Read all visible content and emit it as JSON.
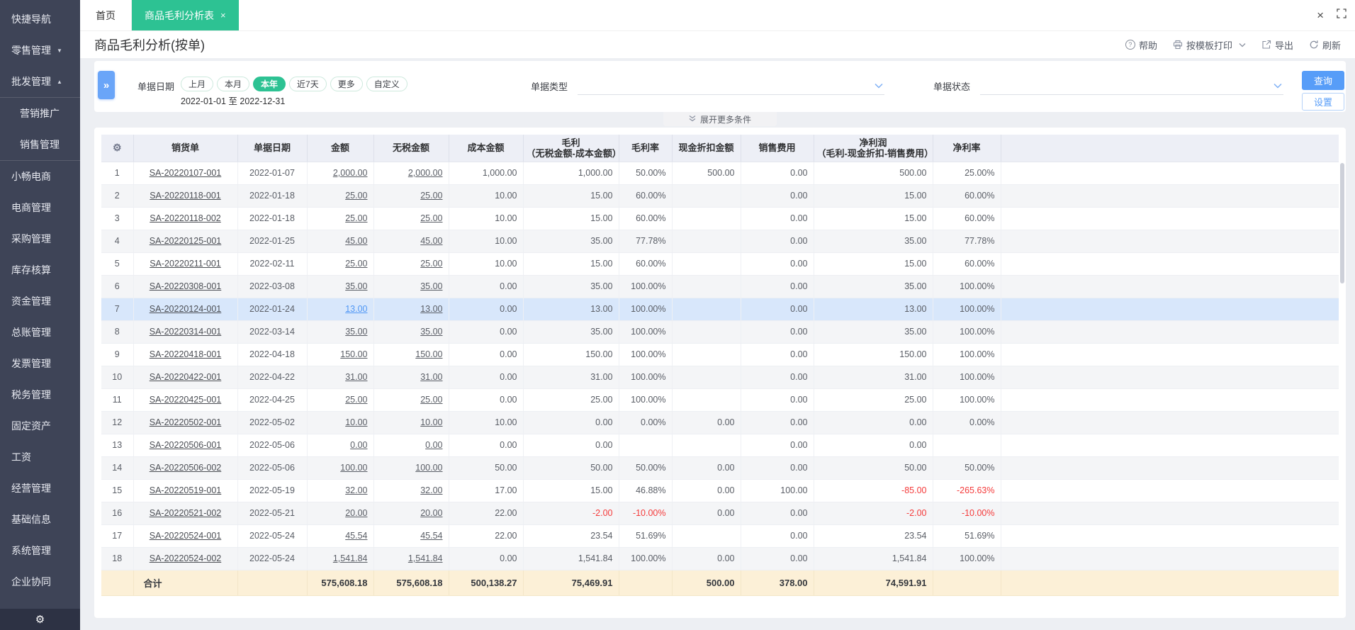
{
  "app": {
    "tabs": [
      {
        "label": "首页",
        "active": false,
        "closable": false
      },
      {
        "label": "商品毛利分析表",
        "active": true,
        "closable": true
      }
    ],
    "window_controls": {
      "close": "×",
      "fullscreen_icon": "fullscreen-icon"
    },
    "page_title": "商品毛利分析(按单)",
    "toolbar": {
      "help": "帮助",
      "print": "按模板打印",
      "export": "导出",
      "refresh": "刷新"
    }
  },
  "sidebar": {
    "items": [
      {
        "label": "快捷导航"
      },
      {
        "label": "零售管理",
        "arrow": "down"
      },
      {
        "label": "批发管理",
        "arrow": "up"
      },
      {
        "label": "营销推广",
        "sub": true
      },
      {
        "label": "销售管理",
        "sub": true
      },
      {
        "label": "小畅电商"
      },
      {
        "label": "电商管理"
      },
      {
        "label": "采购管理"
      },
      {
        "label": "库存核算"
      },
      {
        "label": "资金管理"
      },
      {
        "label": "总账管理"
      },
      {
        "label": "发票管理"
      },
      {
        "label": "税务管理"
      },
      {
        "label": "固定资产"
      },
      {
        "label": "工资"
      },
      {
        "label": "经营管理"
      },
      {
        "label": "基础信息"
      },
      {
        "label": "系统管理"
      },
      {
        "label": "企业协同"
      }
    ],
    "settings_icon": "gear-icon"
  },
  "filters": {
    "date_label": "单据日期",
    "pills": [
      "上月",
      "本月",
      "本年",
      "近7天",
      "更多",
      "自定义"
    ],
    "active_pill": "本年",
    "date_range": "2022-01-01 至 2022-12-31",
    "doc_type_label": "单据类型",
    "doc_status_label": "单据状态",
    "query": "查询",
    "settings": "设置",
    "expand_more": "展开更多条件"
  },
  "table": {
    "columns": [
      {
        "icon": "gear-icon",
        "lines": []
      },
      {
        "lines": [
          "销货单"
        ]
      },
      {
        "lines": [
          "单据日期"
        ]
      },
      {
        "lines": [
          "金额"
        ]
      },
      {
        "lines": [
          "无税金额"
        ]
      },
      {
        "lines": [
          "成本金额"
        ]
      },
      {
        "lines": [
          "毛利",
          "（无税金额-成本金额）"
        ]
      },
      {
        "lines": [
          "毛利率"
        ]
      },
      {
        "lines": [
          "现金折扣金额"
        ]
      },
      {
        "lines": [
          "销售费用"
        ]
      },
      {
        "lines": [
          "净利润",
          "（毛利-现金折扣-销售费用）"
        ]
      },
      {
        "lines": [
          "净利率"
        ]
      }
    ],
    "rows": [
      [
        "1",
        "SA-20220107-001",
        "2022-01-07",
        "2,000.00",
        "2,000.00",
        "1,000.00",
        "1,000.00",
        "50.00%",
        "500.00",
        "0.00",
        "500.00",
        "25.00%"
      ],
      [
        "2",
        "SA-20220118-001",
        "2022-01-18",
        "25.00",
        "25.00",
        "10.00",
        "15.00",
        "60.00%",
        "",
        "0.00",
        "15.00",
        "60.00%"
      ],
      [
        "3",
        "SA-20220118-002",
        "2022-01-18",
        "25.00",
        "25.00",
        "10.00",
        "15.00",
        "60.00%",
        "",
        "0.00",
        "15.00",
        "60.00%"
      ],
      [
        "4",
        "SA-20220125-001",
        "2022-01-25",
        "45.00",
        "45.00",
        "10.00",
        "35.00",
        "77.78%",
        "",
        "0.00",
        "35.00",
        "77.78%"
      ],
      [
        "5",
        "SA-20220211-001",
        "2022-02-11",
        "25.00",
        "25.00",
        "10.00",
        "15.00",
        "60.00%",
        "",
        "0.00",
        "15.00",
        "60.00%"
      ],
      [
        "6",
        "SA-20220308-001",
        "2022-03-08",
        "35.00",
        "35.00",
        "0.00",
        "35.00",
        "100.00%",
        "",
        "0.00",
        "35.00",
        "100.00%"
      ],
      [
        "7",
        "SA-20220124-001",
        "2022-01-24",
        "13.00",
        "13.00",
        "0.00",
        "13.00",
        "100.00%",
        "",
        "0.00",
        "13.00",
        "100.00%"
      ],
      [
        "8",
        "SA-20220314-001",
        "2022-03-14",
        "35.00",
        "35.00",
        "0.00",
        "35.00",
        "100.00%",
        "",
        "0.00",
        "35.00",
        "100.00%"
      ],
      [
        "9",
        "SA-20220418-001",
        "2022-04-18",
        "150.00",
        "150.00",
        "0.00",
        "150.00",
        "100.00%",
        "",
        "0.00",
        "150.00",
        "100.00%"
      ],
      [
        "10",
        "SA-20220422-001",
        "2022-04-22",
        "31.00",
        "31.00",
        "0.00",
        "31.00",
        "100.00%",
        "",
        "0.00",
        "31.00",
        "100.00%"
      ],
      [
        "11",
        "SA-20220425-001",
        "2022-04-25",
        "25.00",
        "25.00",
        "0.00",
        "25.00",
        "100.00%",
        "",
        "0.00",
        "25.00",
        "100.00%"
      ],
      [
        "12",
        "SA-20220502-001",
        "2022-05-02",
        "10.00",
        "10.00",
        "10.00",
        "0.00",
        "0.00%",
        "0.00",
        "0.00",
        "0.00",
        "0.00%"
      ],
      [
        "13",
        "SA-20220506-001",
        "2022-05-06",
        "0.00",
        "0.00",
        "0.00",
        "0.00",
        "",
        "",
        "0.00",
        "0.00",
        ""
      ],
      [
        "14",
        "SA-20220506-002",
        "2022-05-06",
        "100.00",
        "100.00",
        "50.00",
        "50.00",
        "50.00%",
        "0.00",
        "0.00",
        "50.00",
        "50.00%"
      ],
      [
        "15",
        "SA-20220519-001",
        "2022-05-19",
        "32.00",
        "32.00",
        "17.00",
        "15.00",
        "46.88%",
        "0.00",
        "100.00",
        "-85.00",
        "-265.63%"
      ],
      [
        "16",
        "SA-20220521-002",
        "2022-05-21",
        "20.00",
        "20.00",
        "22.00",
        "-2.00",
        "-10.00%",
        "0.00",
        "0.00",
        "-2.00",
        "-10.00%"
      ],
      [
        "17",
        "SA-20220524-001",
        "2022-05-24",
        "45.54",
        "45.54",
        "22.00",
        "23.54",
        "51.69%",
        "",
        "0.00",
        "23.54",
        "51.69%"
      ],
      [
        "18",
        "SA-20220524-002",
        "2022-05-24",
        "1,541.84",
        "1,541.84",
        "0.00",
        "1,541.84",
        "100.00%",
        "0.00",
        "0.00",
        "1,541.84",
        "100.00%"
      ]
    ],
    "selected_row": 7,
    "total": [
      "",
      "合计",
      "",
      "575,608.18",
      "575,608.18",
      "500,138.27",
      "75,469.91",
      "",
      "500.00",
      "378.00",
      "74,591.91",
      ""
    ]
  },
  "colors": {
    "accent_green": "#2dc293",
    "accent_blue": "#579df8",
    "negative_red": "#f43b3b",
    "selected_row_bg": "#d8e7fb",
    "total_row_bg": "#fcf0d7",
    "sidebar_bg": "#3e4457"
  }
}
